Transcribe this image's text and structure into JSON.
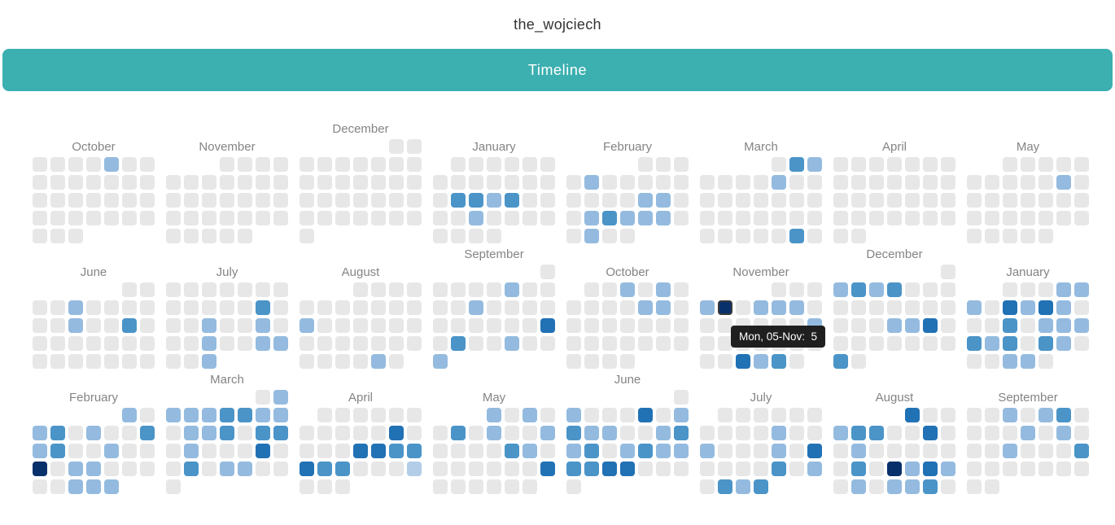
{
  "header": {
    "title": "the_wojciech"
  },
  "banner": {
    "label": "Timeline",
    "color": "#3cafb0",
    "text_color": "#ffffff"
  },
  "tooltip": {
    "text": "Mon, 05-Nov:  5",
    "background": "#1f1f1f",
    "text_color": "#ffffff"
  },
  "chart_data": {
    "type": "heatmap",
    "subtype": "calendar-heatmap",
    "week_starts_on": "Sunday",
    "months_per_row": 8,
    "value_scale": {
      "min": 0,
      "max": 5,
      "note": "0 = no activity (gray), 5 = highest (dark navy)"
    },
    "palette": {
      "0": "#e7e7e7",
      "1": "#b3cde8",
      "2": "#94bbdf",
      "3": "#4a94c8",
      "4": "#2171b5",
      "5": "#08306b"
    },
    "hovered_cell": {
      "month_index": 13,
      "week": 1,
      "day": 1,
      "value": 5,
      "label": "Mon, 05-Nov"
    },
    "months": [
      {
        "name": "October",
        "weeks": [
          [
            0,
            0,
            0,
            0,
            2,
            0,
            0
          ],
          [
            0,
            0,
            0,
            0,
            0,
            0,
            0
          ],
          [
            0,
            0,
            0,
            0,
            0,
            0,
            0
          ],
          [
            0,
            0,
            0,
            0,
            0,
            0,
            0
          ],
          [
            0,
            0,
            0,
            null,
            null,
            null,
            null
          ]
        ]
      },
      {
        "name": "November",
        "weeks": [
          [
            null,
            null,
            null,
            0,
            0,
            0,
            0
          ],
          [
            0,
            0,
            0,
            0,
            0,
            0,
            0
          ],
          [
            0,
            0,
            0,
            0,
            0,
            0,
            0
          ],
          [
            0,
            0,
            0,
            0,
            0,
            0,
            0
          ],
          [
            0,
            0,
            0,
            0,
            0,
            null,
            null
          ]
        ]
      },
      {
        "name": "December",
        "weeks": [
          [
            null,
            null,
            null,
            null,
            null,
            0,
            0
          ],
          [
            0,
            0,
            0,
            0,
            0,
            0,
            0
          ],
          [
            0,
            0,
            0,
            0,
            0,
            0,
            0
          ],
          [
            0,
            0,
            0,
            0,
            0,
            0,
            0
          ],
          [
            0,
            0,
            0,
            0,
            0,
            0,
            0
          ],
          [
            0,
            null,
            null,
            null,
            null,
            null,
            null
          ]
        ]
      },
      {
        "name": "January",
        "weeks": [
          [
            null,
            0,
            0,
            0,
            0,
            0,
            0
          ],
          [
            0,
            0,
            0,
            0,
            0,
            0,
            0
          ],
          [
            0,
            3,
            3,
            2,
            3,
            0,
            0
          ],
          [
            0,
            0,
            2,
            0,
            0,
            0,
            0
          ],
          [
            0,
            0,
            0,
            0,
            null,
            null,
            null
          ]
        ]
      },
      {
        "name": "February",
        "weeks": [
          [
            null,
            null,
            null,
            null,
            0,
            0,
            0
          ],
          [
            0,
            2,
            0,
            0,
            0,
            0,
            0
          ],
          [
            0,
            0,
            0,
            0,
            2,
            2,
            0
          ],
          [
            0,
            2,
            3,
            2,
            2,
            2,
            0
          ],
          [
            0,
            2,
            0,
            0,
            null,
            null,
            null
          ]
        ]
      },
      {
        "name": "March",
        "weeks": [
          [
            null,
            null,
            null,
            null,
            0,
            3,
            2
          ],
          [
            0,
            0,
            0,
            0,
            2,
            0,
            0
          ],
          [
            0,
            0,
            0,
            0,
            0,
            0,
            0
          ],
          [
            0,
            0,
            0,
            0,
            0,
            0,
            0
          ],
          [
            0,
            0,
            0,
            0,
            0,
            3,
            0
          ]
        ]
      },
      {
        "name": "April",
        "weeks": [
          [
            0,
            0,
            0,
            0,
            0,
            0,
            0
          ],
          [
            0,
            0,
            0,
            0,
            0,
            0,
            0
          ],
          [
            0,
            0,
            0,
            0,
            0,
            0,
            0
          ],
          [
            0,
            0,
            0,
            0,
            0,
            0,
            0
          ],
          [
            0,
            0,
            null,
            null,
            null,
            null,
            null
          ]
        ]
      },
      {
        "name": "May",
        "weeks": [
          [
            null,
            null,
            0,
            0,
            0,
            0,
            0
          ],
          [
            0,
            0,
            0,
            0,
            0,
            2,
            0
          ],
          [
            0,
            0,
            0,
            0,
            0,
            0,
            0
          ],
          [
            0,
            0,
            0,
            0,
            0,
            0,
            0
          ],
          [
            0,
            0,
            0,
            0,
            0,
            null,
            null
          ]
        ]
      },
      {
        "name": "June",
        "weeks": [
          [
            null,
            null,
            null,
            null,
            null,
            0,
            0
          ],
          [
            0,
            0,
            2,
            0,
            0,
            0,
            0
          ],
          [
            0,
            0,
            2,
            0,
            0,
            3,
            0
          ],
          [
            0,
            0,
            0,
            0,
            0,
            0,
            0
          ],
          [
            0,
            0,
            0,
            0,
            0,
            0,
            0
          ]
        ]
      },
      {
        "name": "July",
        "weeks": [
          [
            0,
            0,
            0,
            0,
            0,
            0,
            0
          ],
          [
            0,
            0,
            0,
            0,
            0,
            3,
            0
          ],
          [
            0,
            0,
            2,
            0,
            0,
            2,
            0
          ],
          [
            0,
            0,
            2,
            0,
            0,
            2,
            2
          ],
          [
            0,
            0,
            2,
            null,
            null,
            null,
            null
          ]
        ]
      },
      {
        "name": "August",
        "weeks": [
          [
            null,
            null,
            null,
            0,
            0,
            0,
            0
          ],
          [
            0,
            0,
            0,
            0,
            0,
            0,
            0
          ],
          [
            2,
            0,
            0,
            0,
            0,
            0,
            0
          ],
          [
            0,
            0,
            0,
            0,
            0,
            0,
            0
          ],
          [
            0,
            0,
            0,
            0,
            2,
            0,
            null
          ]
        ]
      },
      {
        "name": "September",
        "weeks": [
          [
            null,
            null,
            null,
            null,
            null,
            null,
            0
          ],
          [
            0,
            0,
            0,
            0,
            2,
            0,
            0
          ],
          [
            0,
            0,
            2,
            0,
            0,
            0,
            0
          ],
          [
            0,
            0,
            0,
            0,
            0,
            0,
            4
          ],
          [
            0,
            3,
            0,
            0,
            2,
            0,
            0
          ],
          [
            2,
            null,
            null,
            null,
            null,
            null,
            null
          ]
        ]
      },
      {
        "name": "October",
        "weeks": [
          [
            null,
            0,
            0,
            2,
            0,
            2,
            0
          ],
          [
            0,
            0,
            0,
            0,
            2,
            2,
            0
          ],
          [
            0,
            0,
            0,
            0,
            0,
            0,
            0
          ],
          [
            0,
            0,
            0,
            0,
            0,
            0,
            0
          ],
          [
            0,
            0,
            0,
            0,
            null,
            null,
            null
          ]
        ]
      },
      {
        "name": "November",
        "weeks": [
          [
            null,
            null,
            null,
            null,
            0,
            0,
            0
          ],
          [
            2,
            5,
            0,
            2,
            2,
            2,
            0
          ],
          [
            0,
            0,
            0,
            0,
            0,
            0,
            2
          ],
          [
            0,
            0,
            0,
            0,
            0,
            0,
            0
          ],
          [
            0,
            0,
            4,
            2,
            3,
            0,
            null
          ]
        ]
      },
      {
        "name": "December",
        "weeks": [
          [
            null,
            null,
            null,
            null,
            null,
            null,
            0
          ],
          [
            2,
            3,
            2,
            3,
            0,
            0,
            0
          ],
          [
            0,
            0,
            0,
            0,
            0,
            0,
            0
          ],
          [
            0,
            0,
            0,
            2,
            2,
            4,
            0
          ],
          [
            0,
            0,
            0,
            0,
            0,
            0,
            0
          ],
          [
            3,
            0,
            null,
            null,
            null,
            null,
            null
          ]
        ]
      },
      {
        "name": "January",
        "weeks": [
          [
            null,
            null,
            0,
            0,
            0,
            2,
            2
          ],
          [
            2,
            0,
            4,
            2,
            4,
            2,
            0
          ],
          [
            0,
            0,
            3,
            0,
            2,
            2,
            2
          ],
          [
            3,
            2,
            3,
            0,
            3,
            2,
            0
          ],
          [
            0,
            0,
            2,
            2,
            0,
            null,
            null
          ]
        ]
      },
      {
        "name": "February",
        "weeks": [
          [
            null,
            null,
            null,
            null,
            null,
            2,
            0
          ],
          [
            2,
            3,
            0,
            2,
            0,
            0,
            3
          ],
          [
            2,
            3,
            0,
            0,
            2,
            0,
            0
          ],
          [
            5,
            0,
            2,
            2,
            0,
            0,
            0
          ],
          [
            0,
            0,
            2,
            2,
            2,
            null,
            null
          ]
        ]
      },
      {
        "name": "March",
        "weeks": [
          [
            null,
            null,
            null,
            null,
            null,
            0,
            2
          ],
          [
            2,
            2,
            2,
            3,
            3,
            2,
            2
          ],
          [
            0,
            2,
            2,
            3,
            0,
            3,
            3
          ],
          [
            0,
            2,
            0,
            0,
            0,
            4,
            0
          ],
          [
            0,
            3,
            0,
            2,
            2,
            0,
            0
          ],
          [
            0,
            null,
            null,
            null,
            null,
            null,
            null
          ]
        ]
      },
      {
        "name": "April",
        "weeks": [
          [
            null,
            0,
            0,
            0,
            0,
            0,
            0
          ],
          [
            0,
            0,
            0,
            0,
            0,
            4,
            0
          ],
          [
            0,
            0,
            0,
            4,
            4,
            3,
            3
          ],
          [
            4,
            3,
            3,
            0,
            0,
            0,
            1
          ],
          [
            0,
            0,
            0,
            null,
            null,
            null,
            null
          ]
        ]
      },
      {
        "name": "May",
        "weeks": [
          [
            null,
            null,
            null,
            2,
            0,
            2,
            0
          ],
          [
            0,
            3,
            0,
            2,
            0,
            0,
            2
          ],
          [
            0,
            0,
            0,
            0,
            3,
            2,
            0
          ],
          [
            0,
            0,
            0,
            0,
            0,
            0,
            4
          ],
          [
            0,
            0,
            0,
            0,
            0,
            0,
            null
          ]
        ]
      },
      {
        "name": "June",
        "weeks": [
          [
            null,
            null,
            null,
            null,
            null,
            null,
            0
          ],
          [
            2,
            0,
            0,
            0,
            4,
            0,
            2
          ],
          [
            3,
            2,
            2,
            0,
            0,
            2,
            3
          ],
          [
            2,
            3,
            0,
            2,
            3,
            2,
            2
          ],
          [
            3,
            3,
            4,
            4,
            0,
            0,
            0
          ],
          [
            0,
            null,
            null,
            null,
            null,
            null,
            null
          ]
        ]
      },
      {
        "name": "July",
        "weeks": [
          [
            null,
            0,
            0,
            0,
            0,
            0,
            0
          ],
          [
            0,
            0,
            0,
            0,
            2,
            0,
            0
          ],
          [
            2,
            0,
            0,
            0,
            2,
            0,
            4
          ],
          [
            0,
            0,
            0,
            0,
            3,
            0,
            2
          ],
          [
            0,
            3,
            2,
            3,
            null,
            null,
            null
          ]
        ]
      },
      {
        "name": "August",
        "weeks": [
          [
            null,
            null,
            null,
            null,
            4,
            0,
            0
          ],
          [
            2,
            3,
            3,
            0,
            0,
            4,
            0
          ],
          [
            0,
            2,
            0,
            0,
            0,
            0,
            0
          ],
          [
            0,
            3,
            0,
            5,
            2,
            4,
            2
          ],
          [
            0,
            2,
            0,
            2,
            2,
            3,
            0
          ]
        ]
      },
      {
        "name": "September",
        "weeks": [
          [
            0,
            0,
            2,
            0,
            2,
            3,
            0
          ],
          [
            0,
            0,
            0,
            2,
            0,
            2,
            0
          ],
          [
            0,
            0,
            2,
            0,
            0,
            0,
            3
          ],
          [
            0,
            0,
            0,
            0,
            0,
            0,
            0
          ],
          [
            0,
            0,
            null,
            null,
            null,
            null,
            null
          ]
        ]
      }
    ]
  }
}
